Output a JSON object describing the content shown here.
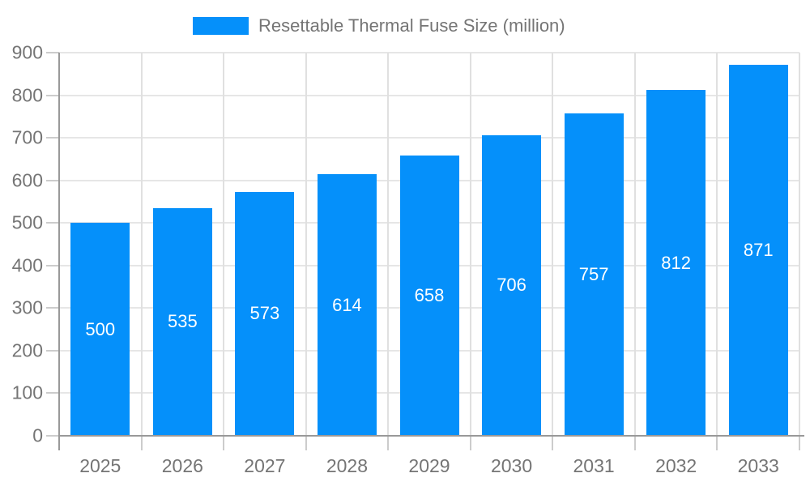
{
  "legend": {
    "label": "Resettable Thermal Fuse Size (million)"
  },
  "chart_data": {
    "type": "bar",
    "title": "Resettable Thermal Fuse Size (million)",
    "categories": [
      "2025",
      "2026",
      "2027",
      "2028",
      "2029",
      "2030",
      "2031",
      "2032",
      "2033"
    ],
    "values": [
      500,
      535,
      573,
      614,
      658,
      706,
      757,
      812,
      871
    ],
    "series": [
      {
        "name": "Resettable Thermal Fuse Size (million)",
        "values": [
          500,
          535,
          573,
          614,
          658,
          706,
          757,
          812,
          871
        ]
      }
    ],
    "xlabel": "",
    "ylabel": "",
    "ylim": [
      0,
      900
    ],
    "ytick_step": 100,
    "grid": true,
    "legend_position": "top-center",
    "bar_labels_visible": true,
    "colors": {
      "bar": "#0590fa",
      "bar_label": "#ffffff",
      "axis_text": "#757575",
      "legend_text": "#757575",
      "grid_horizontal": "#e6e6e6",
      "grid_vertical": "#e0e0e0",
      "axis_line": "#999999",
      "tick": "#cccccc",
      "background": "#ffffff"
    }
  }
}
